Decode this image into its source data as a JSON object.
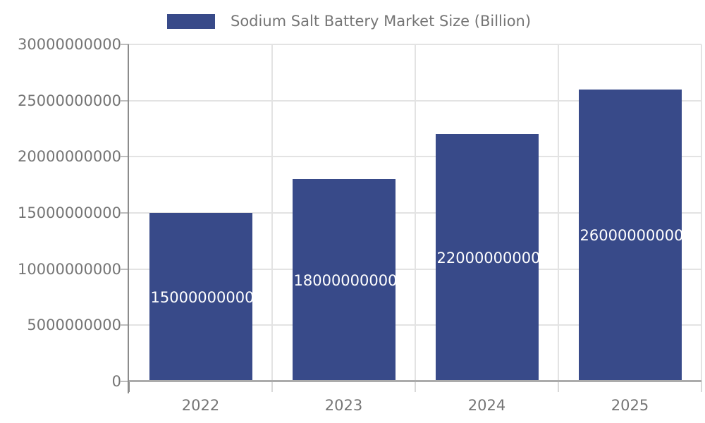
{
  "chart_data": {
    "type": "bar",
    "legend": "Sodium Salt Battery Market Size (Billion)",
    "legend_position": "top",
    "categories": [
      "2022",
      "2023",
      "2024",
      "2025"
    ],
    "values": [
      15000000000,
      18000000000,
      22000000000,
      26000000000
    ],
    "bar_labels": [
      "15000000000",
      "18000000000",
      "22000000000",
      "26000000000"
    ],
    "y_ticks": [
      "30000000000",
      "25000000000",
      "20000000000",
      "15000000000",
      "10000000000",
      "5000000000",
      "0"
    ],
    "ylim": [
      0,
      30000000000
    ],
    "xlabel": "",
    "ylabel": "",
    "grid": true,
    "colors": {
      "bar": "#384A89",
      "bar_label": "#FFFFFF",
      "tick_label": "#757575",
      "legend_text": "#757575",
      "gridline": "#E3E3E3",
      "axis_y": "#8C8C8C",
      "axis_x": "#ABABAB",
      "tick_mark_y": "#BDBDBD",
      "tick_mark_x": "#D9D9D9",
      "background": "#FFFFFF"
    }
  }
}
